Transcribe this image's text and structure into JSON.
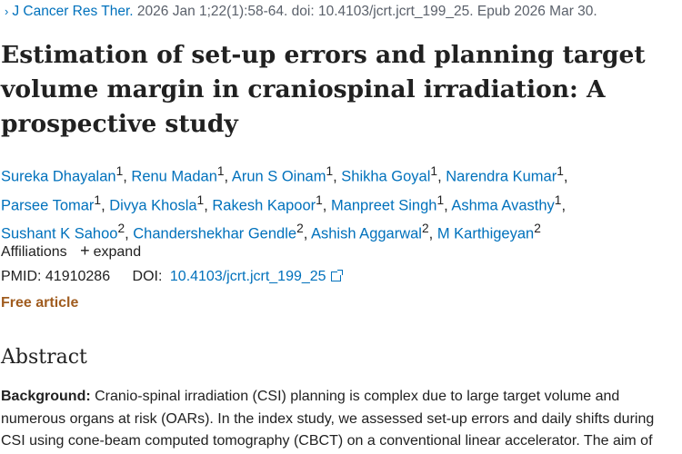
{
  "citation": {
    "chevron": "›",
    "journal": "J Cancer Res Ther.",
    "details": "2026 Jan 1;22(1):58-64. doi: 10.4103/jcrt.jcrt_199_25. Epub 2026 Mar 30."
  },
  "title_lines": [
    "Estimation of set-up errors and planning target",
    "volume margin in craniospinal irradiation: A",
    "prospective study"
  ],
  "authors": [
    {
      "name": "Sureka Dhayalan",
      "aff": "1"
    },
    {
      "name": "Renu Madan",
      "aff": "1"
    },
    {
      "name": "Arun S Oinam",
      "aff": "1"
    },
    {
      "name": "Shikha Goyal",
      "aff": "1"
    },
    {
      "name": "Narendra Kumar",
      "aff": "1"
    },
    {
      "name": "Parsee Tomar",
      "aff": "1"
    },
    {
      "name": "Divya Khosla",
      "aff": "1"
    },
    {
      "name": "Rakesh Kapoor",
      "aff": "1"
    },
    {
      "name": "Manpreet Singh",
      "aff": "1"
    },
    {
      "name": "Ashma Avasthy",
      "aff": "1"
    },
    {
      "name": "Sushant K Sahoo",
      "aff": "2"
    },
    {
      "name": "Chandershekhar Gendle",
      "aff": "2"
    },
    {
      "name": "Ashish Aggarwal",
      "aff": "2"
    },
    {
      "name": "M Karthigeyan",
      "aff": "2"
    }
  ],
  "affiliations": {
    "label": "Affiliations",
    "expand_icon": "+",
    "expand_label": "expand"
  },
  "ids": {
    "pmid_label": "PMID:",
    "pmid": "41910286",
    "doi_label": "DOI:",
    "doi": "10.4103/jcrt.jcrt_199_25"
  },
  "free_article": "Free article",
  "abstract": {
    "heading": "Abstract",
    "background_label": "Background:",
    "lines": [
      " Cranio-spinal irradiation (CSI) planning is complex due to large target volume and",
      "numerous organs at risk (OARs). In the index study, we assessed set-up errors and daily shifts during",
      "CSI using cone-beam computed tomography (CBCT) on a conventional linear accelerator. The aim of"
    ]
  },
  "colors": {
    "link": "#0071bc",
    "free_article": "#a05c1f",
    "text": "#212121",
    "muted": "#5b616b"
  }
}
